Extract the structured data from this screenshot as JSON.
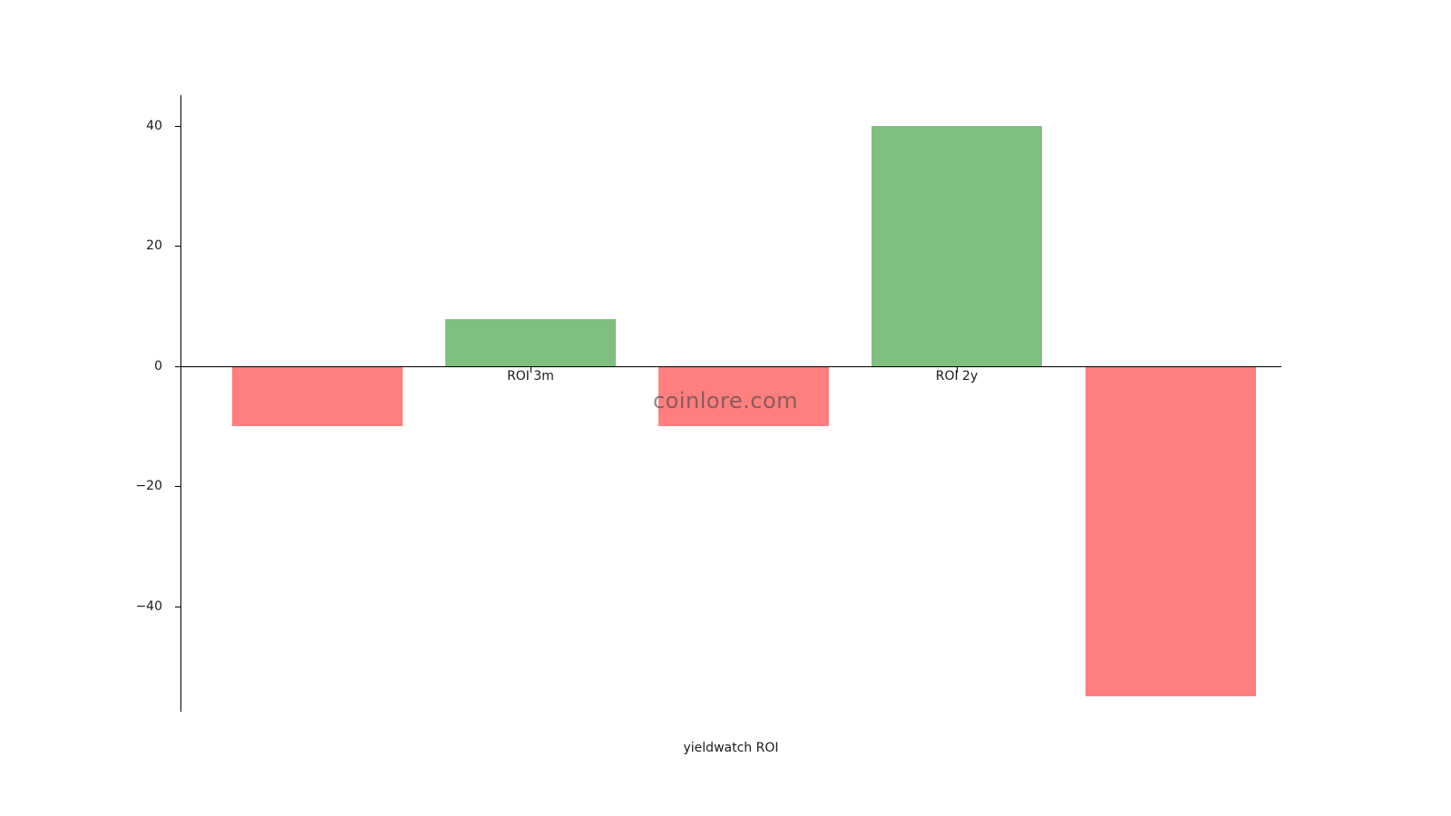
{
  "watermark": {
    "text": "coinlore.com"
  },
  "colors": {
    "positive_bar": "#7fbf7f",
    "negative_bar": "#ff7f7f",
    "axis": "#000000",
    "tick_text": "#1a1a1a"
  },
  "chart_data": {
    "type": "bar",
    "title": "",
    "xlabel": "yieldwatch ROI",
    "ylabel": "",
    "categories": [
      "",
      "ROI 3m",
      "",
      "ROI 2y",
      ""
    ],
    "values": [
      -9.8,
      7.9,
      -9.8,
      40,
      -54.8
    ],
    "series": [
      {
        "name": "yieldwatch ROI (%)",
        "values": [
          -9.8,
          7.9,
          -9.8,
          40,
          -54.8
        ]
      }
    ],
    "bar_colors": [
      "#ff7f7f",
      "#7fbf7f",
      "#ff7f7f",
      "#7fbf7f",
      "#ff7f7f"
    ],
    "y_ticks": [
      40,
      20,
      0,
      -20,
      -40
    ],
    "y_tick_labels": [
      "40",
      "20",
      "0",
      "−20",
      "−40"
    ],
    "ylim": [
      -57.5,
      45.1
    ],
    "grid": false,
    "legend": null,
    "baseline": 0
  }
}
